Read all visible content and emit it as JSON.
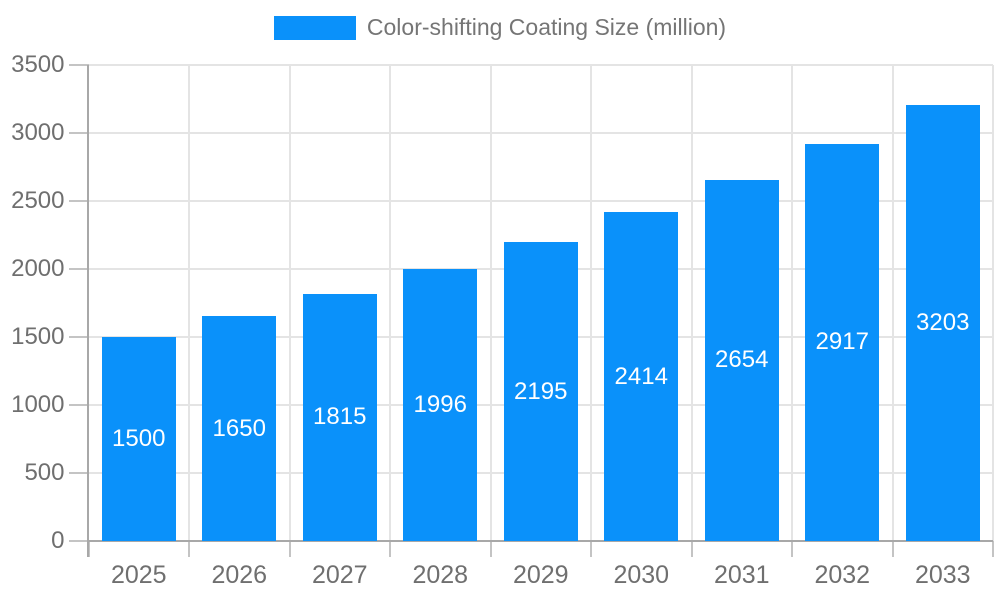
{
  "chart_data": {
    "type": "bar",
    "legend": "Color-shifting Coating Size (million)",
    "categories": [
      "2025",
      "2026",
      "2027",
      "2028",
      "2029",
      "2030",
      "2031",
      "2032",
      "2033"
    ],
    "values": [
      1500,
      1650,
      1815,
      1996,
      2195,
      2414,
      2654,
      2917,
      3203
    ],
    "title": "",
    "xlabel": "",
    "ylabel": "",
    "ylim": [
      0,
      3500
    ],
    "yticks": [
      0,
      500,
      1000,
      1500,
      2000,
      2500,
      3000,
      3500
    ],
    "grid": true,
    "legend_position": "top",
    "value_label_position": "inside-center"
  },
  "colors": {
    "bar": "#0A91FA",
    "axis_text": "#6F6F6F",
    "legend_text": "#757575",
    "value_label": "#FFFFFF",
    "grid_line": "#E4E4E4",
    "tick_mark": "#C4C4C4",
    "axis_line": "#A8A8A8",
    "background": "#FFFFFF"
  }
}
